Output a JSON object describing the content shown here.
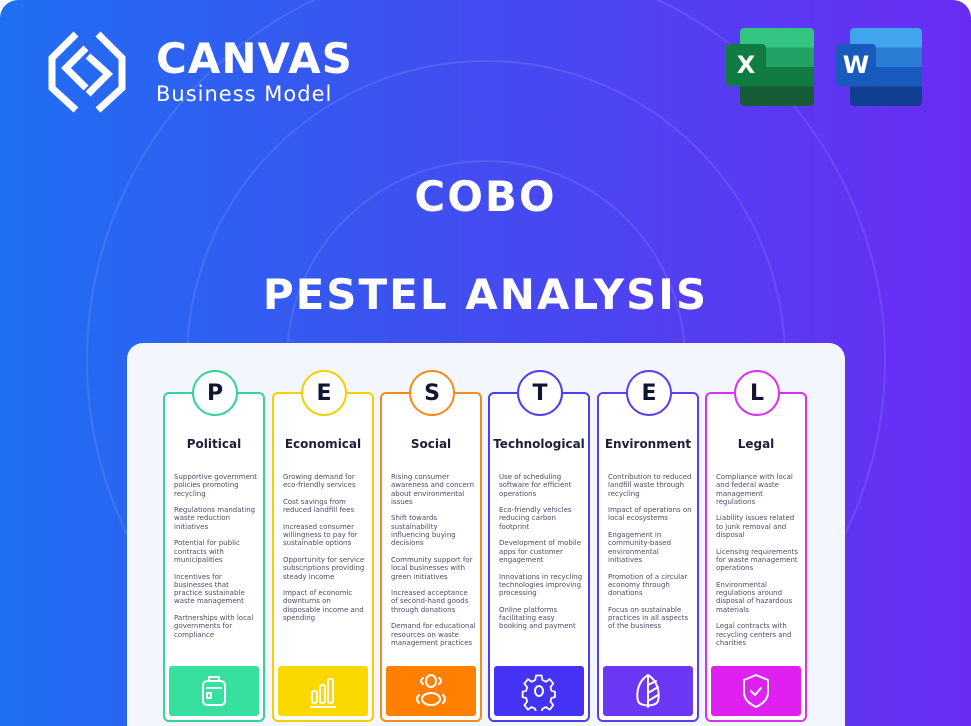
{
  "brand": {
    "name": "CANVAS",
    "tagline": "Business Model"
  },
  "apps": [
    {
      "letter": "X",
      "name": "excel"
    },
    {
      "letter": "W",
      "name": "word"
    }
  ],
  "title": "COBO",
  "subtitle": "PESTEL ANALYSIS",
  "columns": [
    {
      "letter": "P",
      "title": "Political",
      "color": "#34d399",
      "fill": "#38e0a0",
      "icon": "briefcase-icon",
      "items": [
        "Supportive government policies promoting recycling",
        "Regulations mandating waste reduction initiatives",
        "Potential for public contracts with municipalities",
        "Incentives for businesses that practice sustainable waste management",
        "Partnerships with local governments for compliance"
      ]
    },
    {
      "letter": "E",
      "title": "Economical",
      "color": "#f5d000",
      "fill": "#fbd800",
      "icon": "bar-chart-icon",
      "items": [
        "Growing demand for eco-friendly services",
        "Cost savings from reduced landfill fees",
        "Increased consumer willingness to pay for sustainable options",
        "Opportunity for service subscriptions providing steady income",
        "Impact of economic downturns on disposable income and spending"
      ]
    },
    {
      "letter": "S",
      "title": "Social",
      "color": "#f58a1f",
      "fill": "#ff7f00",
      "icon": "people-icon",
      "items": [
        "Rising consumer awareness and concern about environmental issues",
        "Shift towards sustainability influencing buying decisions",
        "Community support for local businesses with green initiatives",
        "Increased acceptance of second-hand goods through donations",
        "Demand for educational resources on waste management practices"
      ]
    },
    {
      "letter": "T",
      "title": "Technological",
      "color": "#4c3ff0",
      "fill": "#4533f5",
      "icon": "gear-icon",
      "items": [
        "Use of scheduling software for efficient operations",
        "Eco-friendly vehicles reducing carbon footprint",
        "Development of mobile apps for customer engagement",
        "Innovations in recycling technologies improving processing",
        "Online platforms facilitating easy booking and payment"
      ]
    },
    {
      "letter": "E",
      "title": "Environment",
      "color": "#5b3ff0",
      "fill": "#6a38f5",
      "icon": "leaf-icon",
      "items": [
        "Contribution to reduced landfill waste through recycling",
        "Impact of operations on local ecosystems",
        "Engagement in community-based environmental initiatives",
        "Promotion of a circular economy through donations",
        "Focus on sustainable practices in all aspects of the business"
      ]
    },
    {
      "letter": "L",
      "title": "Legal",
      "color": "#d633f0",
      "fill": "#e020f0",
      "icon": "shield-check-icon",
      "items": [
        "Compliance with local and federal waste management regulations",
        "Liability issues related to junk removal and disposal",
        "Licensing requirements for waste management operations",
        "Environmental regulations around disposal of hazardous materials",
        "Legal contracts with recycling centers and charities"
      ]
    }
  ]
}
